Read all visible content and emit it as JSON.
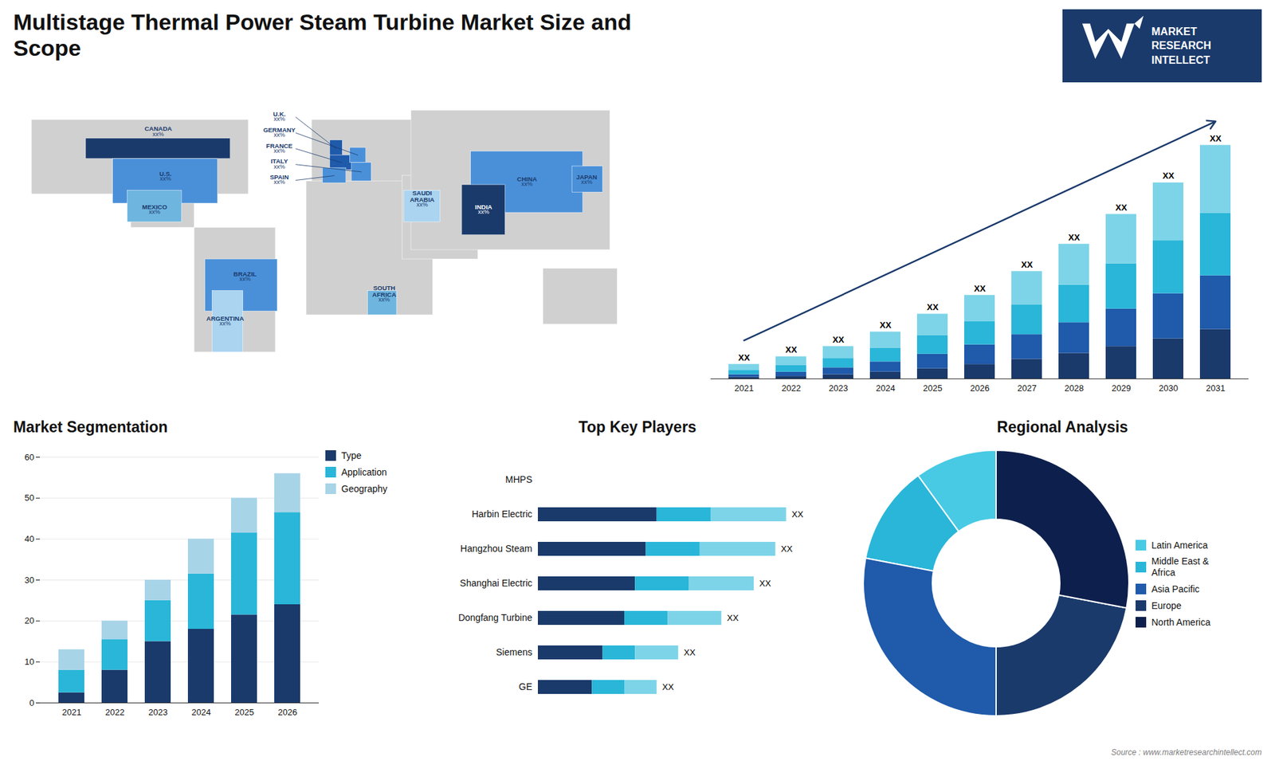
{
  "title": "Multistage Thermal Power Steam Turbine Market Size and\nScope",
  "annotations": [
    "MARKET",
    "RESEARCH",
    "INTELLECT",
    "Source : www.marketresearchintellect.com"
  ],
  "chart_data": [
    {
      "type": "map",
      "categories": [
        "CANADA",
        "U.S.",
        "MEXICO",
        "BRAZIL",
        "ARGENTINA",
        "U.K.",
        "FRANCE",
        "SPAIN",
        "GERMANY",
        "ITALY",
        "SAUDI\nARABIA",
        "SOUTH\nAFRICA",
        "CHINA",
        "INDIA",
        "JAPAN"
      ],
      "colors": [
        "#1a3a6b",
        "#4a90d9",
        "#6eb5e0",
        "#4a90d9",
        "#aad4f0",
        "#1f5aab",
        "#1f5aab",
        "#4a90d9",
        "#4a90d9",
        "#4a90d9",
        "#aad4f0",
        "#6eb5e0",
        "#4a90d9",
        "#1a3a6b",
        "#4a90d9"
      ],
      "value_labels": [
        "xx%",
        "xx%",
        "xx%",
        "xx%",
        "xx%",
        "xx%",
        "xx%",
        "xx%",
        "xx%",
        "xx%",
        "xx%",
        "xx%",
        "xx%",
        "xx%",
        "xx%"
      ]
    },
    {
      "type": "bar",
      "stacked": true,
      "categories": [
        2021,
        2022,
        2023,
        2024,
        2025,
        2026,
        2027,
        2028,
        2029,
        2030,
        2031
      ],
      "series": [
        {
          "color": "#1a3a6b",
          "values": [
            1.0,
            1.5,
            2.5,
            4.0,
            6.0,
            8.5,
            11.5,
            15.0,
            19.0,
            23.5,
            29.0
          ]
        },
        {
          "color": "#1f5aab",
          "values": [
            1.5,
            2.5,
            4.0,
            6.0,
            8.5,
            11.5,
            14.5,
            18.0,
            22.0,
            26.5,
            31.5
          ]
        },
        {
          "color": "#29b6d8",
          "values": [
            2.5,
            4.0,
            5.5,
            8.0,
            11.0,
            13.5,
            17.5,
            22.0,
            26.5,
            31.0,
            36.5
          ]
        },
        {
          "color": "#7dd4e8",
          "values": [
            3.5,
            5.0,
            7.0,
            9.5,
            12.5,
            15.5,
            19.5,
            24.0,
            29.0,
            34.0,
            40.0
          ]
        }
      ],
      "ylim": [
        0,
        161.66
      ],
      "tick_labels": "x",
      "value_labels": [
        "XX",
        "XX",
        "XX",
        "XX",
        "XX",
        "XX",
        "XX",
        "XX",
        "XX",
        "XX",
        "XX"
      ]
    },
    {
      "type": "bar",
      "title": "Market Segmentation",
      "stacked": true,
      "categories": [
        2021,
        2022,
        2023,
        2024,
        2025,
        2026
      ],
      "series": [
        {
          "name": "Type",
          "color": "#1a3a6b",
          "values": [
            2.5,
            8.0,
            15.0,
            18.0,
            21.5,
            24.0
          ]
        },
        {
          "name": "Application",
          "color": "#29b6d8",
          "values": [
            5.5,
            7.5,
            10.0,
            13.5,
            20.0,
            22.5
          ]
        },
        {
          "name": "Geography",
          "color": "#a8d4e8",
          "values": [
            5.0,
            4.5,
            5.0,
            8.5,
            8.5,
            9.5
          ]
        }
      ],
      "ylim": [
        0,
        60
      ],
      "yticks": [
        0,
        10,
        20,
        30,
        40,
        50,
        60
      ],
      "grid": true,
      "legend": "right"
    },
    {
      "type": "bar",
      "title": "Top Key Players",
      "stacked": true,
      "orientation": "horizontal",
      "categories": [
        "MHPS",
        "Harbin Electric",
        "Hangzhou Steam",
        "Shanghai Electric",
        "Dongfang Turbine",
        "Siemens",
        "GE"
      ],
      "series": [
        {
          "color": "#1a3a6b",
          "values": [
            0,
            5.5,
            5.0,
            4.5,
            4.0,
            3.0,
            2.5
          ]
        },
        {
          "color": "#29b6d8",
          "values": [
            0,
            2.5,
            2.5,
            2.5,
            2.0,
            1.5,
            1.5
          ]
        },
        {
          "color": "#7dd4e8",
          "values": [
            0,
            3.5,
            3.5,
            3.0,
            2.5,
            2.0,
            1.5
          ]
        }
      ],
      "xlim": [
        0,
        12
      ],
      "tick_labels": "y",
      "value_labels": [
        null,
        "XX",
        "XX",
        "XX",
        "XX",
        "XX",
        "XX"
      ]
    },
    {
      "type": "pie",
      "title": "Regional Analysis",
      "categories": [
        "Latin America",
        "Middle East &\nAfrica",
        "Asia Pacific",
        "Europe",
        "North America"
      ],
      "values": [
        10,
        12,
        28,
        22,
        28
      ],
      "colors": [
        "#48cae4",
        "#29b6d8",
        "#1f5aab",
        "#1a3a6b",
        "#0d1f4c"
      ],
      "legend": "right"
    }
  ]
}
